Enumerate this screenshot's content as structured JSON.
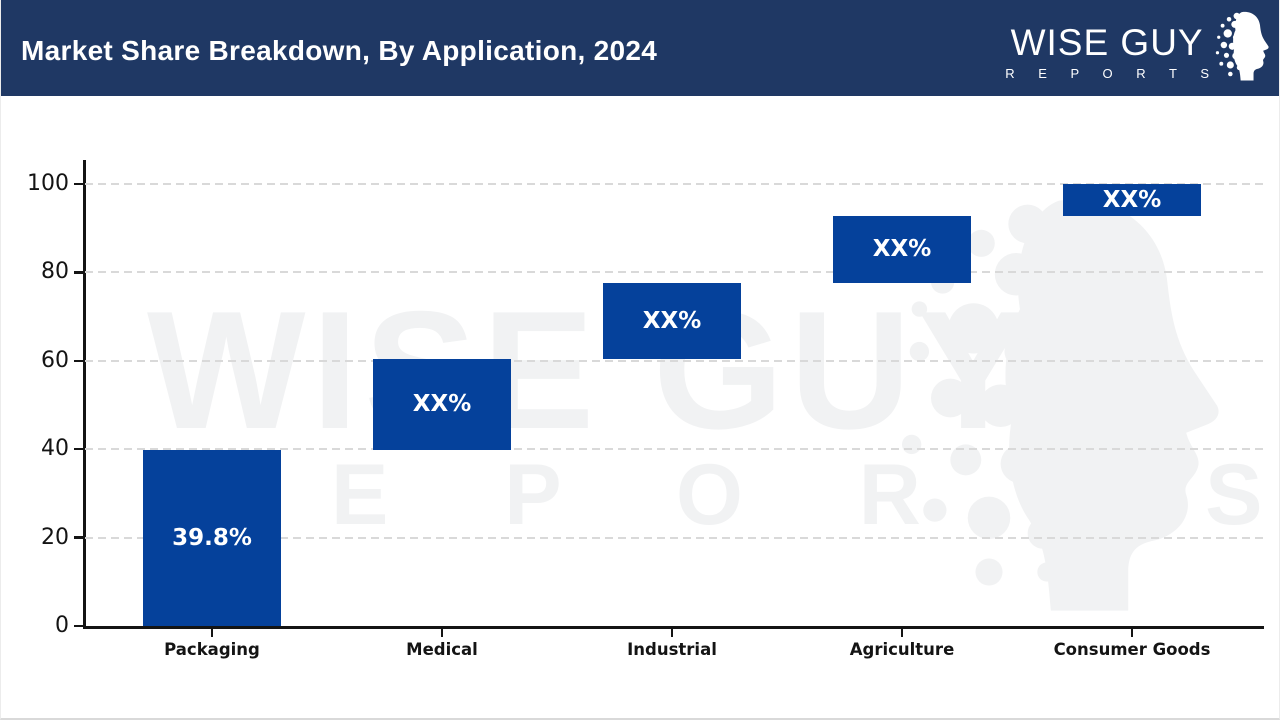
{
  "header": {
    "title": "Market Share Breakdown, By Application, 2024",
    "logo": {
      "name": "WISE GUY",
      "sub": "R E P O R T S"
    }
  },
  "watermark": {
    "line1": "WISE GUY",
    "line2": "R E P O R T S"
  },
  "colors": {
    "header_bg": "#1f3864",
    "bar": "#05419b",
    "axis": "#141414",
    "grid": "#d9d9d9",
    "bar_label_text": "#ffffff",
    "watermark": "#f1f2f3",
    "title_text": "#ffffff"
  },
  "chart_data": {
    "type": "bar",
    "subtype": "waterfall",
    "title": "Market Share Breakdown, By Application, 2024",
    "categories": [
      "Packaging",
      "Medical",
      "Industrial",
      "Agriculture",
      "Consumer Goods"
    ],
    "series": [
      {
        "name": "Market Share",
        "segments": [
          {
            "category": "Packaging",
            "start": 0,
            "end": 39.8,
            "label": "39.8%"
          },
          {
            "category": "Medical",
            "start": 39.8,
            "end": 60.5,
            "label": "XX%"
          },
          {
            "category": "Industrial",
            "start": 60.5,
            "end": 77.7,
            "label": "XX%"
          },
          {
            "category": "Agriculture",
            "start": 77.7,
            "end": 92.7,
            "label": "XX%"
          },
          {
            "category": "Consumer Goods",
            "start": 92.7,
            "end": 100,
            "label": "XX%"
          }
        ]
      }
    ],
    "yticks": [
      0,
      20,
      40,
      60,
      80,
      100
    ],
    "ylim": [
      0,
      107
    ],
    "xlabel": "",
    "ylabel": "",
    "grid": "horizontal-dashed",
    "legend": "none"
  }
}
